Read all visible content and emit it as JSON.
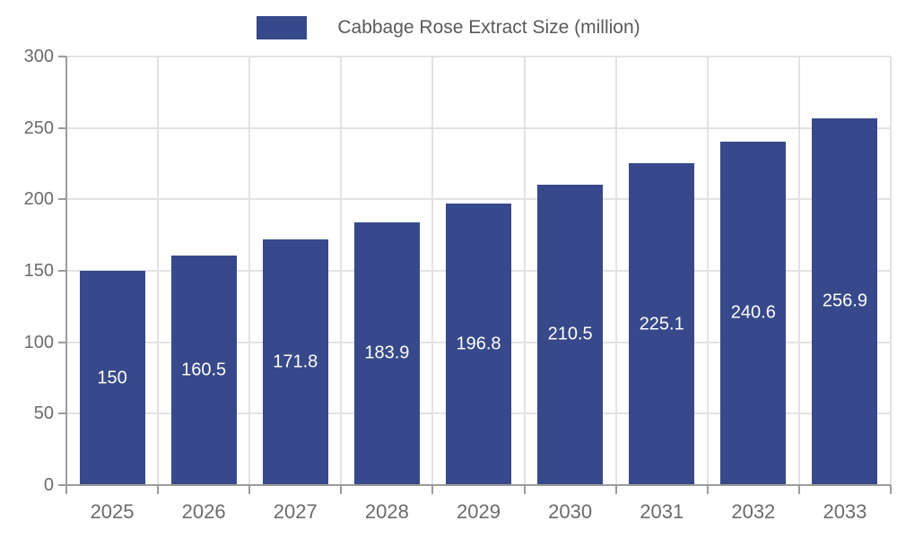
{
  "chart_data": {
    "type": "bar",
    "title": "Cabbage Rose Extract Size (million)",
    "legend_entries": [
      "Cabbage Rose Extract Size (million)"
    ],
    "legend_position": "top-center",
    "categories": [
      "2025",
      "2026",
      "2027",
      "2028",
      "2029",
      "2030",
      "2031",
      "2032",
      "2033"
    ],
    "values": [
      150,
      160.5,
      171.8,
      183.9,
      196.8,
      210.5,
      225.1,
      240.6,
      256.9
    ],
    "xlabel": "",
    "ylabel": "",
    "ylim": [
      0,
      300
    ],
    "yticks": [
      0,
      50,
      100,
      150,
      200,
      250,
      300
    ],
    "grid": true,
    "value_labels_shown": true,
    "value_label_position": "inside-center",
    "colors": {
      "bar": "#37498a",
      "value_label": "#ffffff",
      "axis_text": "#6b6b6b",
      "legend_text": "#595959",
      "grid": "#e2e2e2",
      "axis_line": "#9b9b9b"
    }
  }
}
